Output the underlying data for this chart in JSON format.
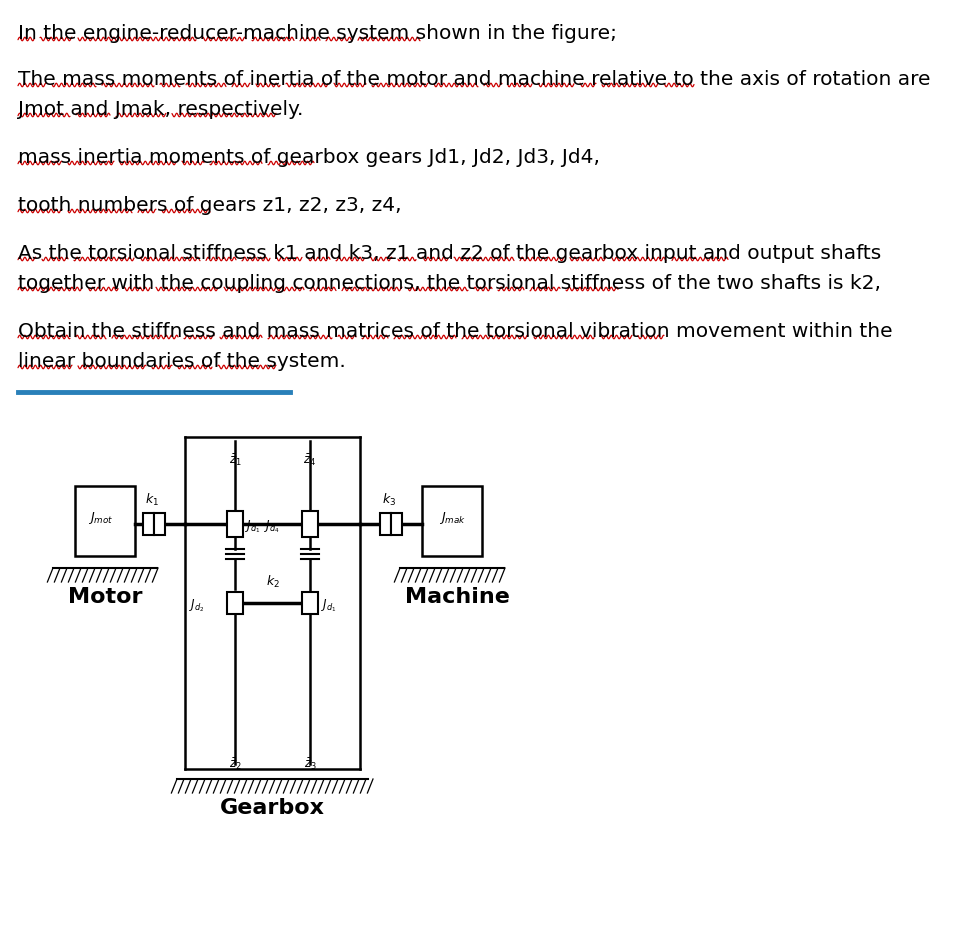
{
  "line1": "In the engine-reducer-machine system shown in the figure;",
  "line2": "The mass moments of inertia of the motor and machine relative to the axis of rotation are",
  "line3": "Jmot and Jmak, respectively.",
  "line4": "mass inertia moments of gearbox gears Jd1, Jd2, Jd3, Jd4,",
  "line5": "tooth numbers of gears z1, z2, z3, z4,",
  "line6": "As the torsional stiffness k1 and k3, z1 and z2 of the gearbox input and output shafts",
  "line7": "together with the coupling connections, the torsional stiffness of the two shafts is k2,",
  "line8": "Obtain the stiffness and mass matrices of the torsional vibration movement within the",
  "line9": "linear boundaries of the system.",
  "separator_color": "#2980b9",
  "text_color": "#000000",
  "underline_color": "#cc0000",
  "background_color": "#ffffff",
  "motor_label": "Motor",
  "machine_label": "Machine",
  "gearbox_label": "Gearbox",
  "font_size": 14.5
}
